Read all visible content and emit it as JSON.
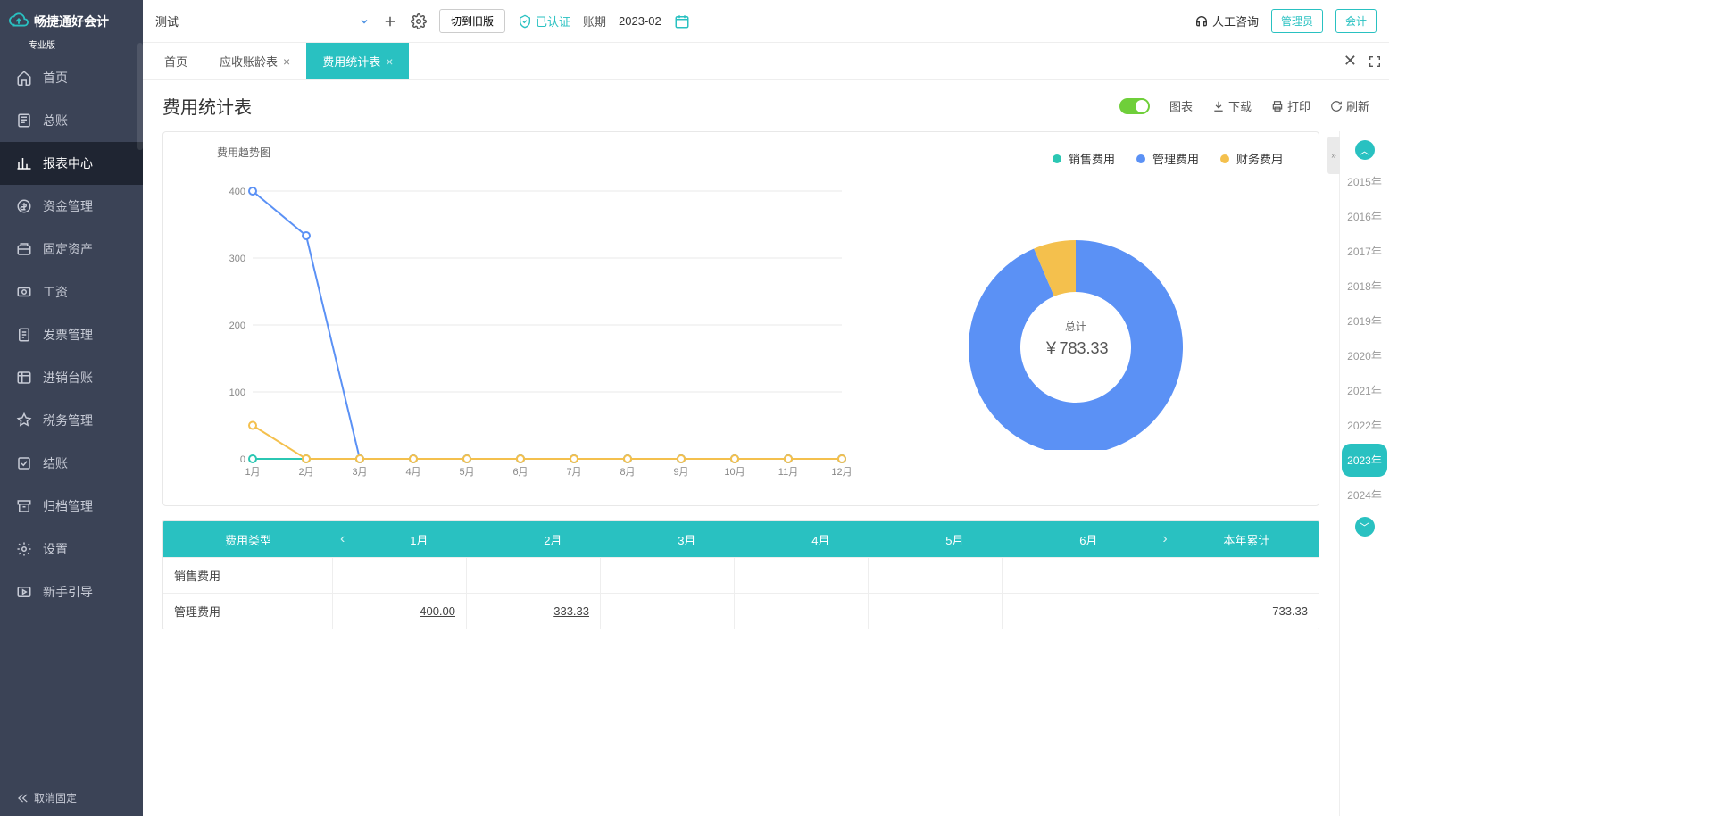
{
  "brand": {
    "name": "畅捷通好会计",
    "edition": "专业版"
  },
  "sidebar": {
    "items": [
      {
        "label": "首页",
        "icon": "home"
      },
      {
        "label": "总账",
        "icon": "ledger"
      },
      {
        "label": "报表中心",
        "icon": "report",
        "active": true
      },
      {
        "label": "资金管理",
        "icon": "fund"
      },
      {
        "label": "固定资产",
        "icon": "asset"
      },
      {
        "label": "工资",
        "icon": "salary"
      },
      {
        "label": "发票管理",
        "icon": "invoice"
      },
      {
        "label": "进销台账",
        "icon": "stock"
      },
      {
        "label": "税务管理",
        "icon": "tax"
      },
      {
        "label": "结账",
        "icon": "close"
      },
      {
        "label": "归档管理",
        "icon": "archive"
      },
      {
        "label": "设置",
        "icon": "settings"
      },
      {
        "label": "新手引导",
        "icon": "guide"
      }
    ],
    "footer": "取消固定"
  },
  "topbar": {
    "company": "测试",
    "switch_old": "切到旧版",
    "verified": "已认证",
    "period_label": "账期",
    "period_value": "2023-02",
    "support": "人工咨询",
    "admin": "管理员",
    "role": "会计"
  },
  "tabs": {
    "items": [
      {
        "label": "首页",
        "closable": false
      },
      {
        "label": "应收账龄表",
        "closable": true
      },
      {
        "label": "费用统计表",
        "closable": true,
        "active": true
      }
    ]
  },
  "page": {
    "title": "费用统计表",
    "actions": {
      "chart": "图表",
      "download": "下载",
      "print": "打印",
      "refresh": "刷新"
    }
  },
  "line_chart": {
    "title": "费用趋势图",
    "type": "line",
    "x_categories": [
      "1月",
      "2月",
      "3月",
      "4月",
      "5月",
      "6月",
      "7月",
      "8月",
      "9月",
      "10月",
      "11月",
      "12月"
    ],
    "ylim": [
      0,
      400
    ],
    "ytick_step": 100,
    "grid_color": "#e9e9e9",
    "axis_color": "#cfcfcf",
    "background": "#ffffff",
    "label_fontsize": 11,
    "label_color": "#888888",
    "series": [
      {
        "name": "销售费用",
        "color": "#2bc7b3",
        "marker": "circle",
        "marker_size": 4,
        "values": [
          0,
          0,
          0,
          0,
          0,
          0,
          0,
          0,
          0,
          0,
          0,
          0
        ]
      },
      {
        "name": "管理费用",
        "color": "#5b91f5",
        "marker": "circle",
        "marker_size": 4,
        "values": [
          400,
          333.33,
          0,
          0,
          0,
          0,
          0,
          0,
          0,
          0,
          0,
          0
        ]
      },
      {
        "name": "财务费用",
        "color": "#f4c04d",
        "marker": "circle",
        "marker_size": 4,
        "values": [
          50,
          0,
          0,
          0,
          0,
          0,
          0,
          0,
          0,
          0,
          0,
          0
        ]
      }
    ]
  },
  "donut": {
    "type": "donut",
    "center_label": "总计",
    "center_value": "￥783.33",
    "inner_radius": 62,
    "outer_radius": 120,
    "background": "#ffffff",
    "slices": [
      {
        "name": "管理费用",
        "value": 733.33,
        "color": "#5b91f5"
      },
      {
        "name": "财务费用",
        "value": 50.0,
        "color": "#f4c04d"
      },
      {
        "name": "销售费用",
        "value": 0.0,
        "color": "#2bc7b3"
      }
    ]
  },
  "legend": {
    "items": [
      {
        "label": "销售费用",
        "color": "#2bc7b3"
      },
      {
        "label": "管理费用",
        "color": "#5b91f5"
      },
      {
        "label": "财务费用",
        "color": "#f4c04d"
      }
    ]
  },
  "table": {
    "header_bg": "#29c1c1",
    "header_fg": "#ffffff",
    "columns": [
      "费用类型",
      "1月",
      "2月",
      "3月",
      "4月",
      "5月",
      "6月",
      "本年累计"
    ],
    "rows": [
      {
        "name": "销售费用",
        "m": [
          "",
          "",
          "",
          "",
          "",
          ""
        ],
        "total": ""
      },
      {
        "name": "管理费用",
        "m": [
          "400.00",
          "333.33",
          "",
          "",
          "",
          ""
        ],
        "total": "733.33",
        "underline_months": true
      }
    ]
  },
  "years": {
    "list": [
      "2015年",
      "2016年",
      "2017年",
      "2018年",
      "2019年",
      "2020年",
      "2021年",
      "2022年",
      "2023年",
      "2024年"
    ],
    "active": "2023年"
  }
}
